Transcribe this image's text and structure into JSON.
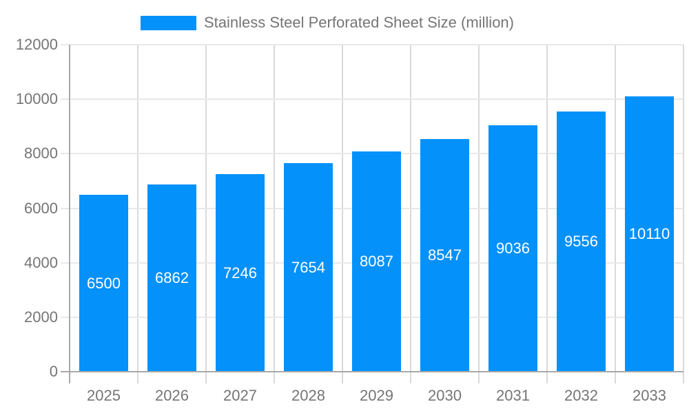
{
  "chart_data": {
    "type": "bar",
    "title": "Stainless Steel Perforated Sheet Size (million)",
    "legend_position": "top",
    "categories": [
      "2025",
      "2026",
      "2027",
      "2028",
      "2029",
      "2030",
      "2031",
      "2032",
      "2033"
    ],
    "values": [
      6500,
      6862,
      7246,
      7654,
      8087,
      8547,
      9036,
      9556,
      10110
    ],
    "series": [
      {
        "name": "Stainless Steel Perforated Sheet Size (million)",
        "values": [
          6500,
          6862,
          7246,
          7654,
          8087,
          8547,
          9036,
          9556,
          10110
        ]
      }
    ],
    "xlabel": "",
    "ylabel": "",
    "ylim": [
      0,
      12000
    ],
    "y_ticks": [
      0,
      2000,
      4000,
      6000,
      8000,
      10000,
      12000
    ],
    "grid": true,
    "colors": {
      "bar": "#0591FA",
      "bar_value_text": "#ffffff",
      "axis_text": "#757575",
      "legend_text": "#757575",
      "gridline": "#e8e8e8",
      "axis_line": "#a8a8a8",
      "boundary_tick": "#cccccc",
      "background": "#ffffff"
    }
  }
}
